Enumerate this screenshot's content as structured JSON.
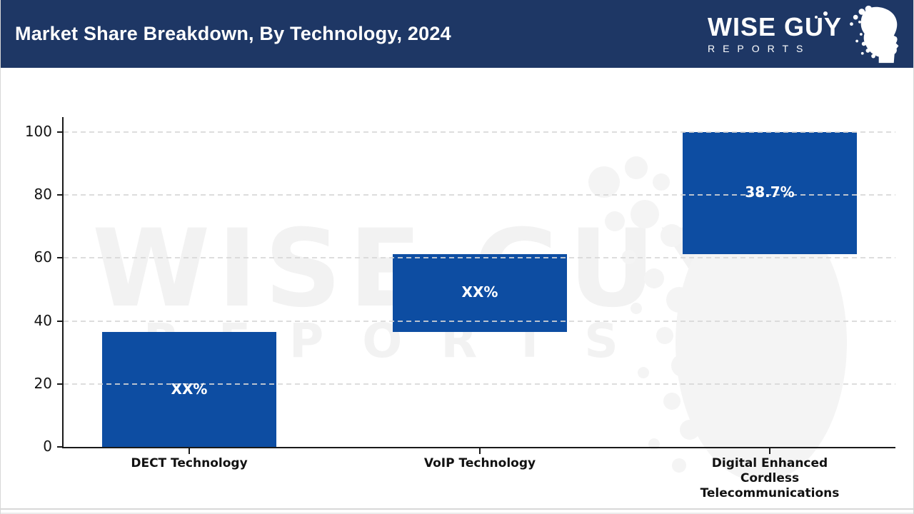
{
  "header": {
    "title": "Market Share Breakdown, By Technology, 2024",
    "logo": {
      "line1": "WISE GUY",
      "line2": "REPORTS"
    }
  },
  "watermark": {
    "line1": "WISE GUY",
    "line2": "REPORTS"
  },
  "chart_data": {
    "type": "bar",
    "subtype": "floating-waterfall",
    "title": "Market Share Breakdown, By Technology, 2024",
    "categories": [
      "DECT Technology",
      "VoIP Technology",
      "Digital Enhanced Cordless Telecommunications"
    ],
    "bars": [
      {
        "category": "DECT Technology",
        "start": 0,
        "end": 36.5,
        "label": "XX%"
      },
      {
        "category": "VoIP Technology",
        "start": 36.5,
        "end": 61.3,
        "label": "XX%"
      },
      {
        "category": "Digital Enhanced Cordless Telecommunications",
        "start": 61.3,
        "end": 100,
        "label": "38.7%"
      }
    ],
    "yticks": [
      0,
      20,
      40,
      60,
      80,
      100
    ],
    "ylim": [
      0,
      104
    ],
    "grid": "horizontal-dashed",
    "legend": "none",
    "colors": {
      "bar": "#0d4da2",
      "bar_label": "#ffffff",
      "grid": "#d7d7d7",
      "axis": "#1a1a1a",
      "header_bg": "#1e3765",
      "header_text": "#ffffff"
    }
  }
}
